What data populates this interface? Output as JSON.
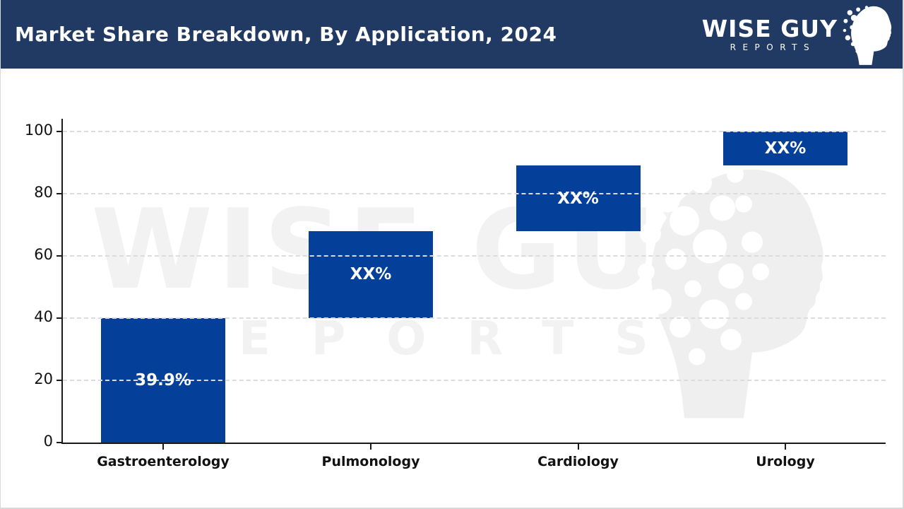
{
  "header": {
    "title": "Market Share Breakdown, By Application, 2024",
    "colors": {
      "background": "#213a63",
      "text": "#ffffff"
    },
    "logo": {
      "line1": "WISE GUY",
      "line2": "REPORTS"
    }
  },
  "watermark": {
    "line1": "WISE GUY",
    "line2": "REPORTS",
    "color": "#f2f2f2"
  },
  "chart_data": {
    "type": "bar",
    "subtype": "floating-waterfall",
    "title": "Market Share Breakdown, By Application, 2024",
    "categories": [
      "Gastroenterology",
      "Pulmonology",
      "Cardiology",
      "Urology"
    ],
    "series": [
      {
        "name": "Market share (%)",
        "segments": [
          {
            "category": "Gastroenterology",
            "from": 0,
            "to": 39.9,
            "label": "39.9%"
          },
          {
            "category": "Pulmonology",
            "from": 40,
            "to": 68,
            "label": "XX%"
          },
          {
            "category": "Cardiology",
            "from": 68,
            "to": 89,
            "label": "XX%"
          },
          {
            "category": "Urology",
            "from": 89,
            "to": 100,
            "label": "XX%"
          }
        ]
      }
    ],
    "xlabel": "",
    "ylabel": "",
    "ylim": [
      0,
      100
    ],
    "yticks": [
      0,
      20,
      40,
      60,
      80,
      100
    ],
    "grid": "horizontal-dashed",
    "legend": "none",
    "colors": {
      "bar": "#04409a",
      "bar_label": "#ffffff",
      "axis": "#1a1a1a",
      "gridline": "#dcdcdc",
      "tick_text": "#111111"
    }
  }
}
